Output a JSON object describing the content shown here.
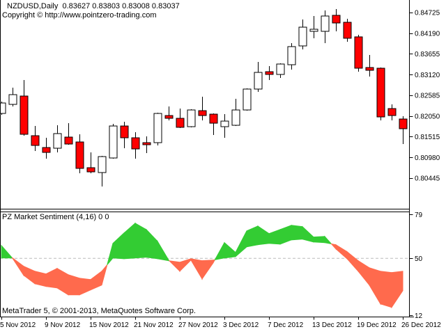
{
  "window": {
    "header_symbol": "NZDUSD,Daily",
    "header_ohlc": "0.83627 0.83803 0.83008 0.83037",
    "copyright": "Copyright © http://www.pointzero-trading.com",
    "indicator_title": "PZ Market Sentiment (4,16) 0 0",
    "footer": "MetaTrader 5, © 2001-2013, MetaQuotes Software Corp."
  },
  "colors": {
    "background": "#FFFFFF",
    "text": "#000000",
    "axis_line": "#000000",
    "grid_dash": "#BBBBBB",
    "bull_candle": "#FFFFFF",
    "bear_candle": "#FF0000",
    "candle_border": "#000000",
    "band_up": "#33CC33",
    "band_down": "#FF6A4D"
  },
  "chart_data": [
    {
      "type": "candlestick",
      "title": "NZDUSD,Daily",
      "y_ticks": [
        0.84725,
        0.8419,
        0.83655,
        0.8312,
        0.82585,
        0.8205,
        0.81515,
        0.8098,
        0.80445
      ],
      "x_tick_labels": [
        "5 Nov 2012",
        "9 Nov 2012",
        "15 Nov 2012",
        "21 Nov 2012",
        "27 Nov 2012",
        "3 Dec 2012",
        "7 Dec 2012",
        "13 Dec 2012",
        "19 Dec 2012",
        "26 Dec 2012"
      ],
      "x_tick_indices": [
        0,
        4,
        8,
        12,
        16,
        20,
        24,
        28,
        32,
        36
      ],
      "dates": [
        "5 Nov 2012",
        "6 Nov 2012",
        "7 Nov 2012",
        "8 Nov 2012",
        "9 Nov 2012",
        "12 Nov 2012",
        "13 Nov 2012",
        "14 Nov 2012",
        "15 Nov 2012",
        "16 Nov 2012",
        "19 Nov 2012",
        "20 Nov 2012",
        "21 Nov 2012",
        "22 Nov 2012",
        "23 Nov 2012",
        "26 Nov 2012",
        "27 Nov 2012",
        "28 Nov 2012",
        "29 Nov 2012",
        "30 Nov 2012",
        "3 Dec 2012",
        "4 Dec 2012",
        "5 Dec 2012",
        "6 Dec 2012",
        "7 Dec 2012",
        "10 Dec 2012",
        "11 Dec 2012",
        "12 Dec 2012",
        "13 Dec 2012",
        "14 Dec 2012",
        "17 Dec 2012",
        "18 Dec 2012",
        "19 Dec 2012",
        "20 Dec 2012",
        "21 Dec 2012",
        "24 Dec 2012",
        "26 Dec 2012"
      ],
      "candles": [
        [
          0.82117,
          0.82423,
          0.82081,
          0.82387
        ],
        [
          0.82351,
          0.82783,
          0.82297,
          0.82603
        ],
        [
          0.82567,
          0.82981,
          0.81542,
          0.81578
        ],
        [
          0.81542,
          0.81793,
          0.81146,
          0.8129
        ],
        [
          0.81236,
          0.81488,
          0.80948,
          0.8111
        ],
        [
          0.81218,
          0.81811,
          0.8111,
          0.81596
        ],
        [
          0.81506,
          0.81865,
          0.81308,
          0.81326
        ],
        [
          0.8138,
          0.81578,
          0.80571,
          0.80697
        ],
        [
          0.80715,
          0.8111,
          0.80571,
          0.80607
        ],
        [
          0.80589,
          0.8102,
          0.80229,
          0.81002
        ],
        [
          0.80966,
          0.81847,
          0.80948,
          0.81793
        ],
        [
          0.81793,
          0.81901,
          0.81218,
          0.81488
        ],
        [
          0.81488,
          0.81631,
          0.80948,
          0.812
        ],
        [
          0.81362,
          0.81524,
          0.81092,
          0.81308
        ],
        [
          0.81362,
          0.82135,
          0.8129,
          0.82117
        ],
        [
          0.82063,
          0.82297,
          0.81937,
          0.81991
        ],
        [
          0.81991,
          0.82243,
          0.8174,
          0.81758
        ],
        [
          0.81775,
          0.82225,
          0.81758,
          0.82207
        ],
        [
          0.82189,
          0.82549,
          0.81937,
          0.82063
        ],
        [
          0.82099,
          0.82117,
          0.8156,
          0.81865
        ],
        [
          0.81775,
          0.82099,
          0.81488,
          0.81919
        ],
        [
          0.81811,
          0.82495,
          0.81793,
          0.82207
        ],
        [
          0.82207,
          0.82765,
          0.82189,
          0.82747
        ],
        [
          0.82747,
          0.83448,
          0.82675,
          0.83178
        ],
        [
          0.83196,
          0.8334,
          0.82981,
          0.83125
        ],
        [
          0.83125,
          0.83412,
          0.83035,
          0.83394
        ],
        [
          0.83376,
          0.83934,
          0.8325,
          0.83844
        ],
        [
          0.83862,
          0.84545,
          0.83772,
          0.84347
        ],
        [
          0.84239,
          0.84635,
          0.8406,
          0.84293
        ],
        [
          0.84239,
          0.84779,
          0.83934,
          0.84635
        ],
        [
          0.84653,
          0.84815,
          0.84239,
          0.84455
        ],
        [
          0.84473,
          0.84563,
          0.8397,
          0.8406
        ],
        [
          0.84096,
          0.84149,
          0.83196,
          0.83286
        ],
        [
          0.83304,
          0.83628,
          0.83071,
          0.83232
        ],
        [
          0.83286,
          0.83304,
          0.81937,
          0.82027
        ],
        [
          0.82243,
          0.82351,
          0.81937,
          0.82063
        ],
        [
          0.81973,
          0.82045,
          0.81326,
          0.81722
        ]
      ]
    },
    {
      "type": "band",
      "title": "PZ Market Sentiment (4,16) 0 0",
      "y_ticks": [
        79,
        50,
        12
      ],
      "mid_level": 50,
      "fast": [
        58.3,
        49.8,
        38.5,
        32.9,
        31.1,
        30.1,
        25.5,
        25.5,
        28.8,
        32.0,
        59.7,
        66.6,
        73.1,
        68.9,
        61.1,
        48.6,
        41.2,
        48.6,
        36.1,
        46.8,
        60.2,
        53.7,
        68.0,
        71.2,
        66.2,
        68.9,
        71.7,
        70.8,
        63.9,
        64.3,
        56.0,
        49.5,
        41.2,
        32.0,
        19.5,
        17.2,
        28.3
      ],
      "slow": [
        50.0,
        50.0,
        44.5,
        41.2,
        39.4,
        43.1,
        38.9,
        36.6,
        35.7,
        41.2,
        50.0,
        49.5,
        50.0,
        50.5,
        49.5,
        48.2,
        47.2,
        49.5,
        48.2,
        48.6,
        50.0,
        50.9,
        57.4,
        58.8,
        59.7,
        59.2,
        62.0,
        62.5,
        60.6,
        60.2,
        58.8,
        54.2,
        48.2,
        43.5,
        41.2,
        40.3,
        41.2
      ]
    }
  ]
}
